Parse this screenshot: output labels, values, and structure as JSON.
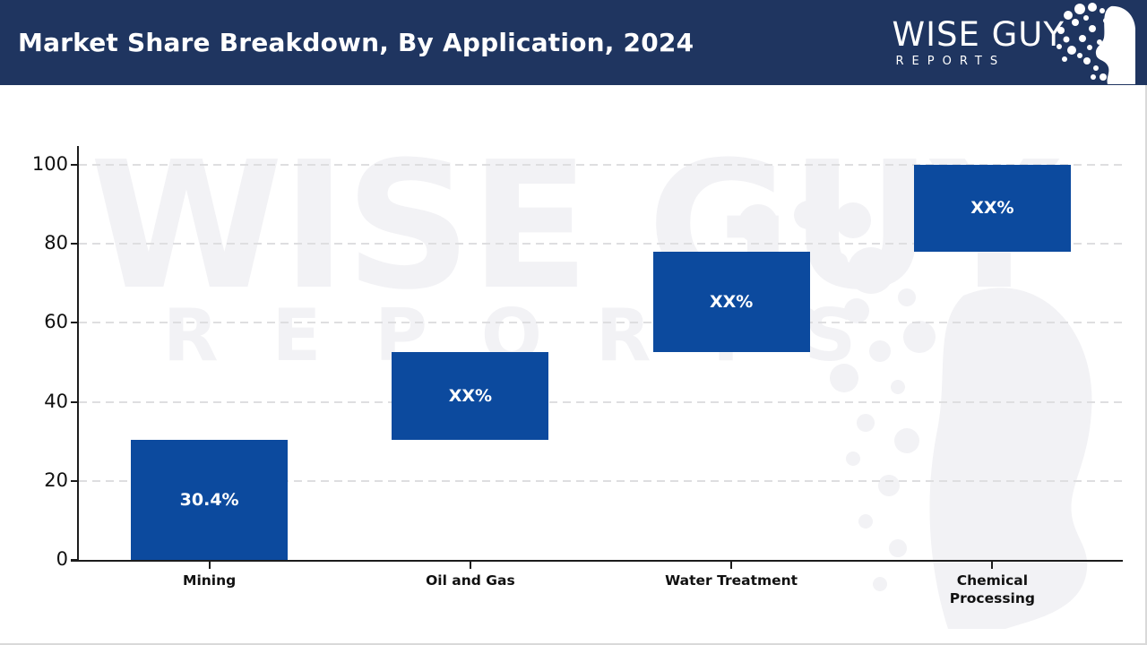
{
  "header": {
    "title": "Market Share Breakdown, By Application, 2024",
    "logo": {
      "primary": "WISE GUY",
      "secondary": "REPORTS"
    }
  },
  "watermark": {
    "primary": "WISE GUY",
    "secondary": "REPORTS"
  },
  "colors": {
    "header_bg": "#1f3560",
    "bar": "#0c4a9e",
    "bar_label": "#ffffff",
    "axis": "#1c1c1c",
    "gridline": "#dedee0",
    "watermark": "#f2f2f5"
  },
  "chart_data": {
    "type": "bar",
    "subtype": "waterfall",
    "title": "Market Share Breakdown, By Application, 2024",
    "categories": [
      "Mining",
      "Oil and Gas",
      "Water Treatment",
      "Chemical Processing"
    ],
    "segments": [
      {
        "category": "Mining",
        "start": 0,
        "end": 30.4,
        "label": "30.4%"
      },
      {
        "category": "Oil and Gas",
        "start": 30.4,
        "end": 52.7,
        "label": "XX%"
      },
      {
        "category": "Water Treatment",
        "start": 52.7,
        "end": 78.1,
        "label": "XX%"
      },
      {
        "category": "Chemical Processing",
        "start": 78.1,
        "end": 100,
        "label": "XX%"
      }
    ],
    "yticks": [
      0,
      20,
      40,
      60,
      80,
      100
    ],
    "yticklabels": [
      "0",
      "20",
      "40",
      "60",
      "80",
      "100"
    ],
    "ylim": [
      0,
      106
    ],
    "grid": true,
    "grid_style": "dashed",
    "legend": "none",
    "xlabel": "",
    "ylabel": ""
  }
}
